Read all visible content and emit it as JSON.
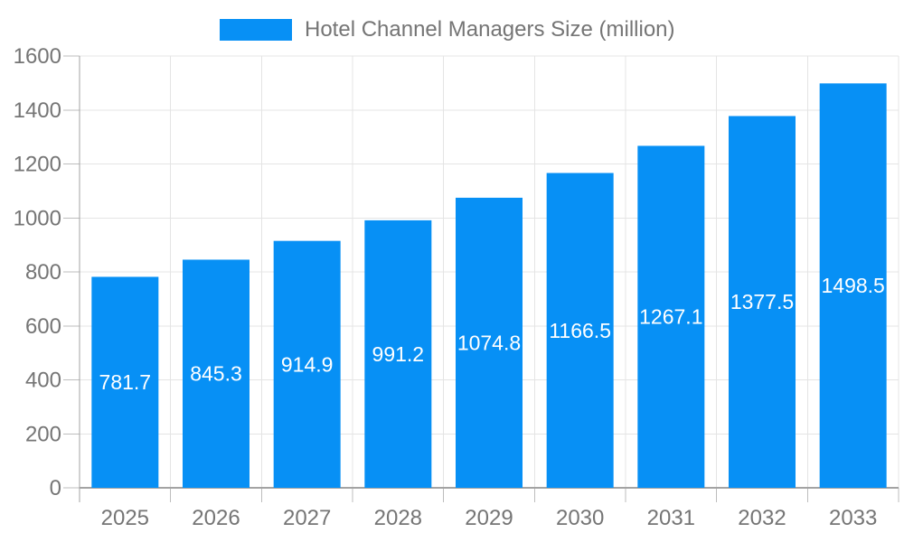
{
  "legend": {
    "label": "Hotel Channel Managers Size (million)"
  },
  "chart_data": {
    "type": "bar",
    "title": "Hotel Channel Managers Size (million)",
    "series_name": "Hotel Channel Managers Size (million)",
    "categories": [
      "2025",
      "2026",
      "2027",
      "2028",
      "2029",
      "2030",
      "2031",
      "2032",
      "2033"
    ],
    "values": [
      781.7,
      845.3,
      914.9,
      991.2,
      1074.8,
      1166.5,
      1267.1,
      1377.5,
      1498.5
    ],
    "value_labels": [
      "781.7",
      "845.3",
      "914.9",
      "991.2",
      "1074.8",
      "1166.5",
      "1267.1",
      "1377.5",
      "1498.5"
    ],
    "xlabel": "",
    "ylabel": "",
    "ylim": [
      0,
      1600
    ],
    "yticks": [
      0,
      200,
      400,
      600,
      800,
      1000,
      1200,
      1400,
      1600
    ],
    "grid": true,
    "legend_position": "top",
    "colors": {
      "bar": "#0790f5",
      "value_label": "#ffffff",
      "axis_text": "#757575",
      "gridline": "#e4e4e4",
      "axis_line": "#a3a3a3",
      "tick": "#bdbdbd"
    }
  }
}
